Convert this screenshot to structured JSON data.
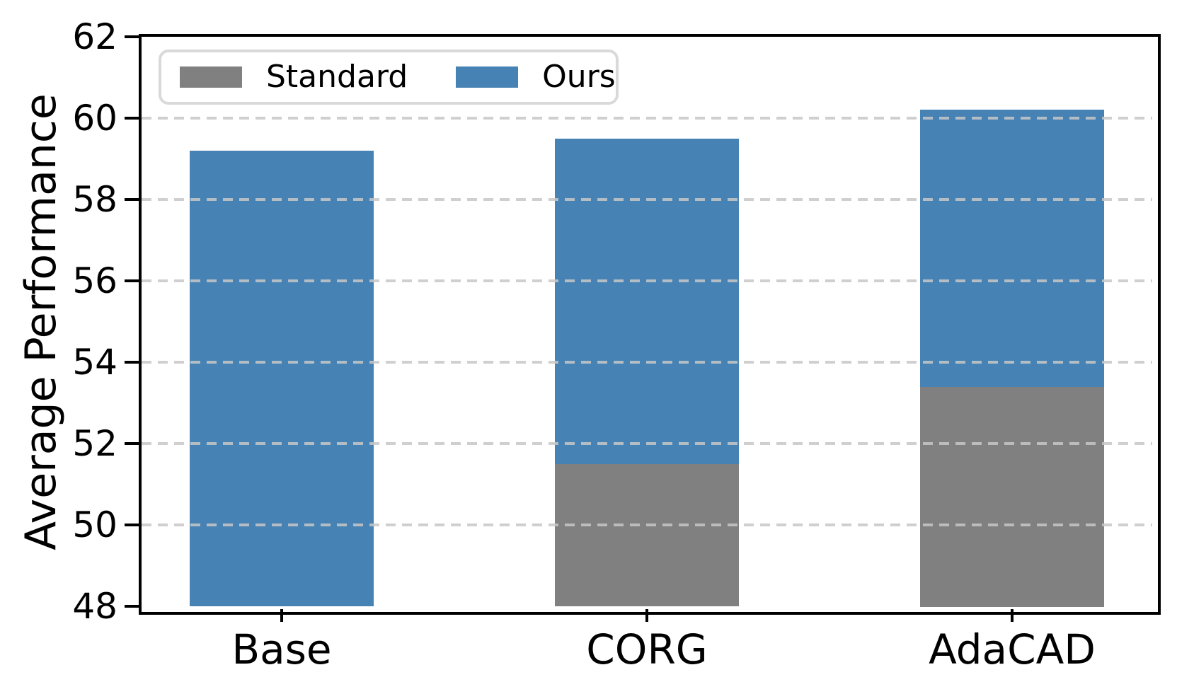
{
  "figure": {
    "background_color": "#ffffff",
    "spine_color": "#000000"
  },
  "y_axis": {
    "label": "Average Performance",
    "tick_labels": [
      "48",
      "50",
      "52",
      "54",
      "56",
      "58",
      "60",
      "62"
    ]
  },
  "x_axis": {
    "tick_labels": [
      "Base",
      "CORG",
      "AdaCAD"
    ]
  },
  "legend": {
    "position": "upper left",
    "items": [
      {
        "label": "Standard",
        "color": "#808080"
      },
      {
        "label": "Ours",
        "color": "#4682b4"
      }
    ]
  },
  "chart_data": {
    "type": "bar",
    "title": "",
    "xlabel": "",
    "ylabel": "Average Performance",
    "categories": [
      "Base",
      "CORG",
      "AdaCAD"
    ],
    "series": [
      {
        "name": "Ours",
        "color": "#4682b4",
        "values": [
          59.2,
          59.5,
          60.2
        ]
      },
      {
        "name": "Standard",
        "color": "#808080",
        "values": [
          null,
          51.5,
          53.4
        ]
      }
    ],
    "bar_mode": "overlay (Standard drawn in front of Ours at same x)",
    "ylim": [
      48,
      62
    ],
    "yticks": [
      48,
      50,
      52,
      54,
      56,
      58,
      60,
      62
    ],
    "grid": {
      "axis": "y",
      "style": "dashed",
      "color": "#c7c7c7",
      "gridline_values": [
        50,
        52,
        54,
        56,
        58,
        60
      ],
      "drawn_above_bars": true
    },
    "legend_entries": [
      "Standard",
      "Ours"
    ],
    "legend_position": "upper left"
  }
}
